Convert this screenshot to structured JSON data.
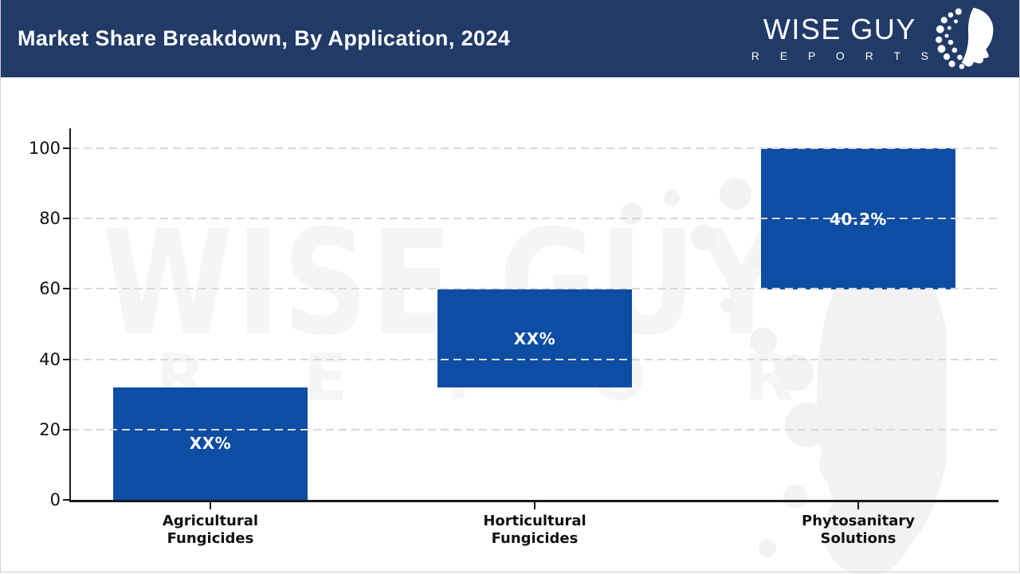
{
  "header": {
    "title": "Market Share Breakdown, By Application, 2024",
    "logo": {
      "wordmark": "WISE GUY",
      "subtext": "R E P O R T S"
    }
  },
  "watermark": {
    "wordmark": "WISE GUY",
    "subtext": "R E P O R T S"
  },
  "colors": {
    "header_bg": "#213a66",
    "bar_fill": "#0d4da3",
    "gridline": "#d8d8d8",
    "axis": "#1a1a1a",
    "tick_text": "#111111",
    "bar_label_text": "#ffffff",
    "watermark_text": "#f5f5f6",
    "page_border": "#d0d0d0"
  },
  "chart_data": {
    "type": "bar",
    "subtype": "waterfall",
    "title": "Market Share Breakdown, By Application, 2024",
    "xlabel": "",
    "ylabel": "",
    "ylim": [
      0,
      100
    ],
    "yticks": [
      0,
      20,
      40,
      60,
      80,
      100
    ],
    "grid": "horizontal-dashed",
    "legend": null,
    "categories": [
      "Agricultural Fungicides",
      "Horticultural Fungicides",
      "Phytosanitary Solutions"
    ],
    "bars": [
      {
        "category_lines": [
          "Agricultural",
          "Fungicides"
        ],
        "base": 0,
        "top": 32,
        "value_label": "XX%"
      },
      {
        "category_lines": [
          "Horticultural",
          "Fungicides"
        ],
        "base": 32,
        "top": 59.8,
        "value_label": "XX%"
      },
      {
        "category_lines": [
          "Phytosanitary",
          "Solutions"
        ],
        "base": 59.8,
        "top": 100,
        "value_label": "40.2%"
      }
    ]
  }
}
